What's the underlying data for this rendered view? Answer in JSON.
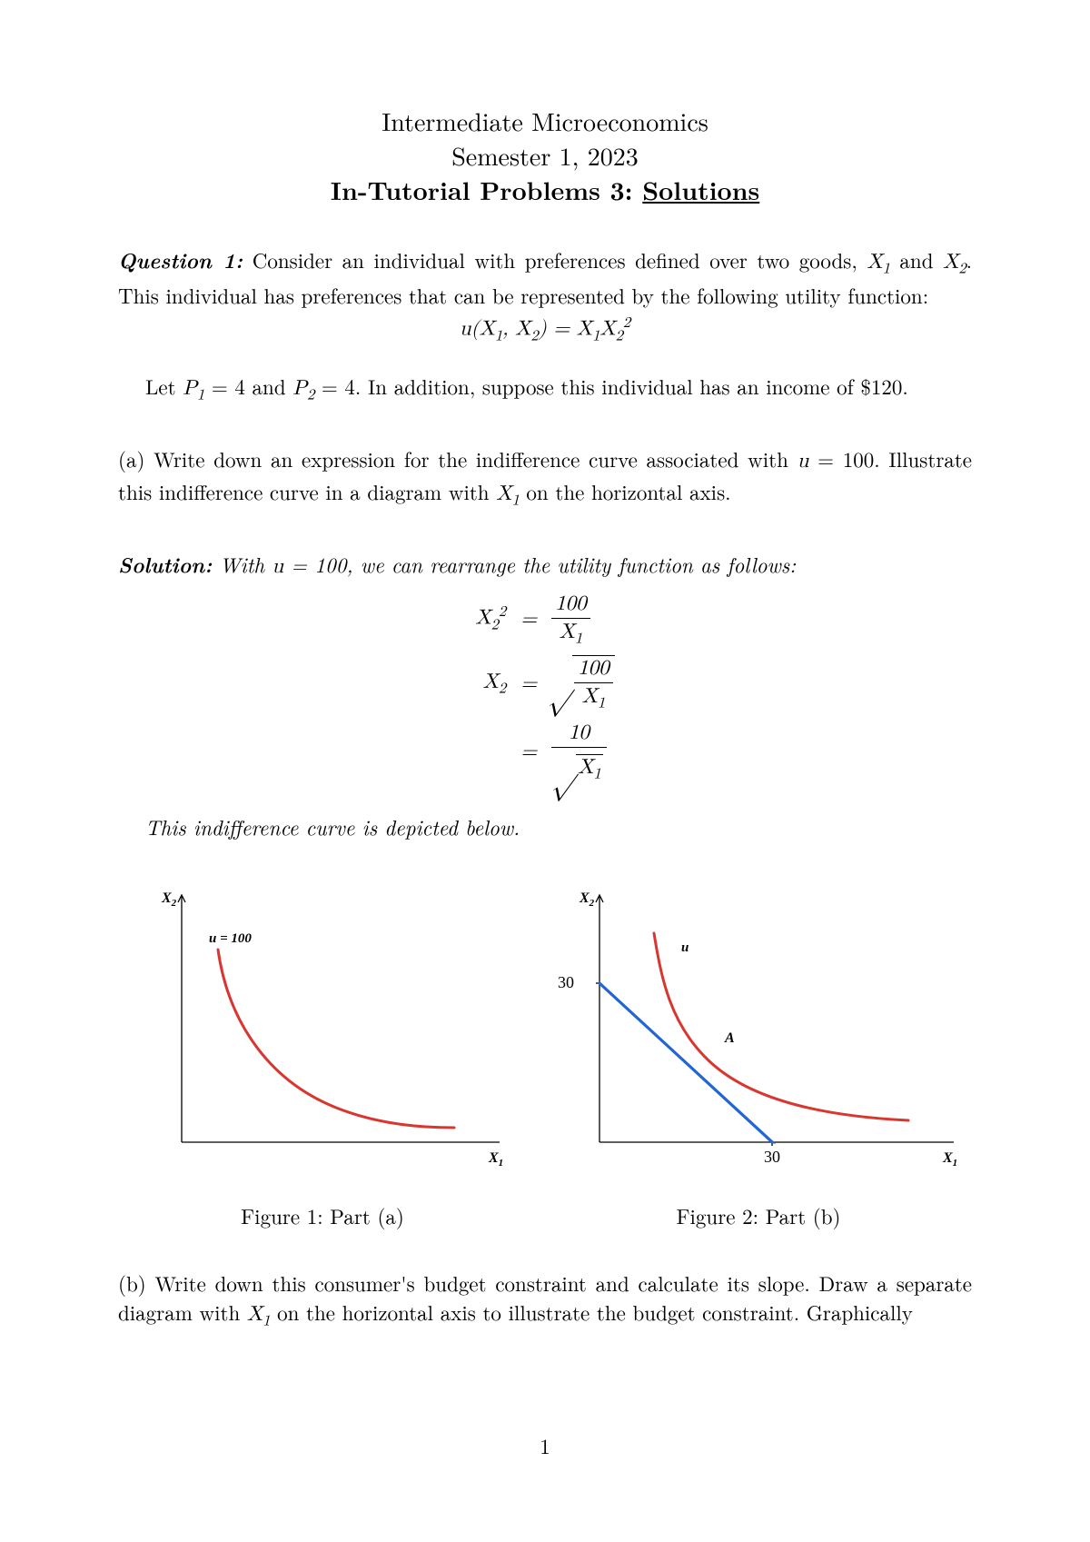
{
  "header": {
    "line1": "Intermediate Microeconomics",
    "line2": "Semester 1, 2023",
    "line3_prefix": "In-Tutorial Problems 3: ",
    "line3_solutions": "Solutions"
  },
  "q1": {
    "label": "Question 1:",
    "text_a": " Consider an individual with preferences defined over two goods, ",
    "X1": "X",
    "sub1": "1",
    "and_word": " and ",
    "X2": "X",
    "sub2": "2",
    "text_b": ". This individual has preferences that can be represented by the following utility function:"
  },
  "eq_utility_html": "u(X<span class=\"sub\">1</span>, X<span class=\"sub\">2</span>) = X<span class=\"sub\">1</span>X<span class=\"sub\">2</span><span class=\"sup\">2</span>",
  "let_line_html": "Let <span class=\"math\">P<span class=\"sub\">1</span></span> = 4 and <span class=\"math\">P<span class=\"sub\">2</span></span> = 4. In addition, suppose this individual has an income of $120.",
  "part_a_html": "(a) Write down an expression for the indifference curve associated with <span class=\"math\">u</span> = 100. Illustrate this indifference curve in a diagram with <span class=\"math\">X<span class=\"sub\">1</span></span> on the horizontal axis.",
  "solution": {
    "label": "Solution:",
    "text_html": " With <span class=\"math\">u</span> = 100, we can rearrange the utility function as follows:"
  },
  "deriv": {
    "lhs1_html": "X<span class=\"sub\">2</span><span class=\"sup\">2</span>",
    "rhs1_num": "100",
    "rhs1_den_html": "X<span class=\"sub\">1</span>",
    "lhs2_html": "X<span class=\"sub\">2</span>",
    "rhs2_num": "100",
    "rhs2_den_html": "X<span class=\"sub\">1</span>",
    "rhs3_num": "10",
    "rhs3_den_html": "<span class=\"sqrt-sym\">√</span><span class=\"sqrt-body\">X<span class=\"sub\">1</span></span>"
  },
  "depicted_html": "This indifference curve is depicted below.",
  "figures": {
    "fig1": {
      "y_axis_label": "X",
      "y_axis_sub": "2",
      "x_axis_label": "X",
      "x_axis_sub": "1",
      "curve_label": "u = 100",
      "curve_color": "#d8362f",
      "axis_color": "#000000",
      "caption": "Figure 1: Part (a)"
    },
    "fig2": {
      "y_axis_label": "X",
      "y_axis_sub": "2",
      "x_axis_label": "X",
      "x_axis_sub": "1",
      "y_tick": "30",
      "x_tick": "30",
      "u_label": "u",
      "point_label": "A",
      "curve_color_red": "#d8362f",
      "curve_color_blue": "#2265d4",
      "axis_color": "#000000",
      "caption": "Figure 2: Part (b)"
    }
  },
  "part_b_html": "(b) Write down this consumer's budget constraint and calculate its slope. Draw a separate diagram with <span class=\"math\">X<span class=\"sub\">1</span></span> on the horizontal axis to illustrate the budget constraint. Graphically",
  "pagenum": "1"
}
